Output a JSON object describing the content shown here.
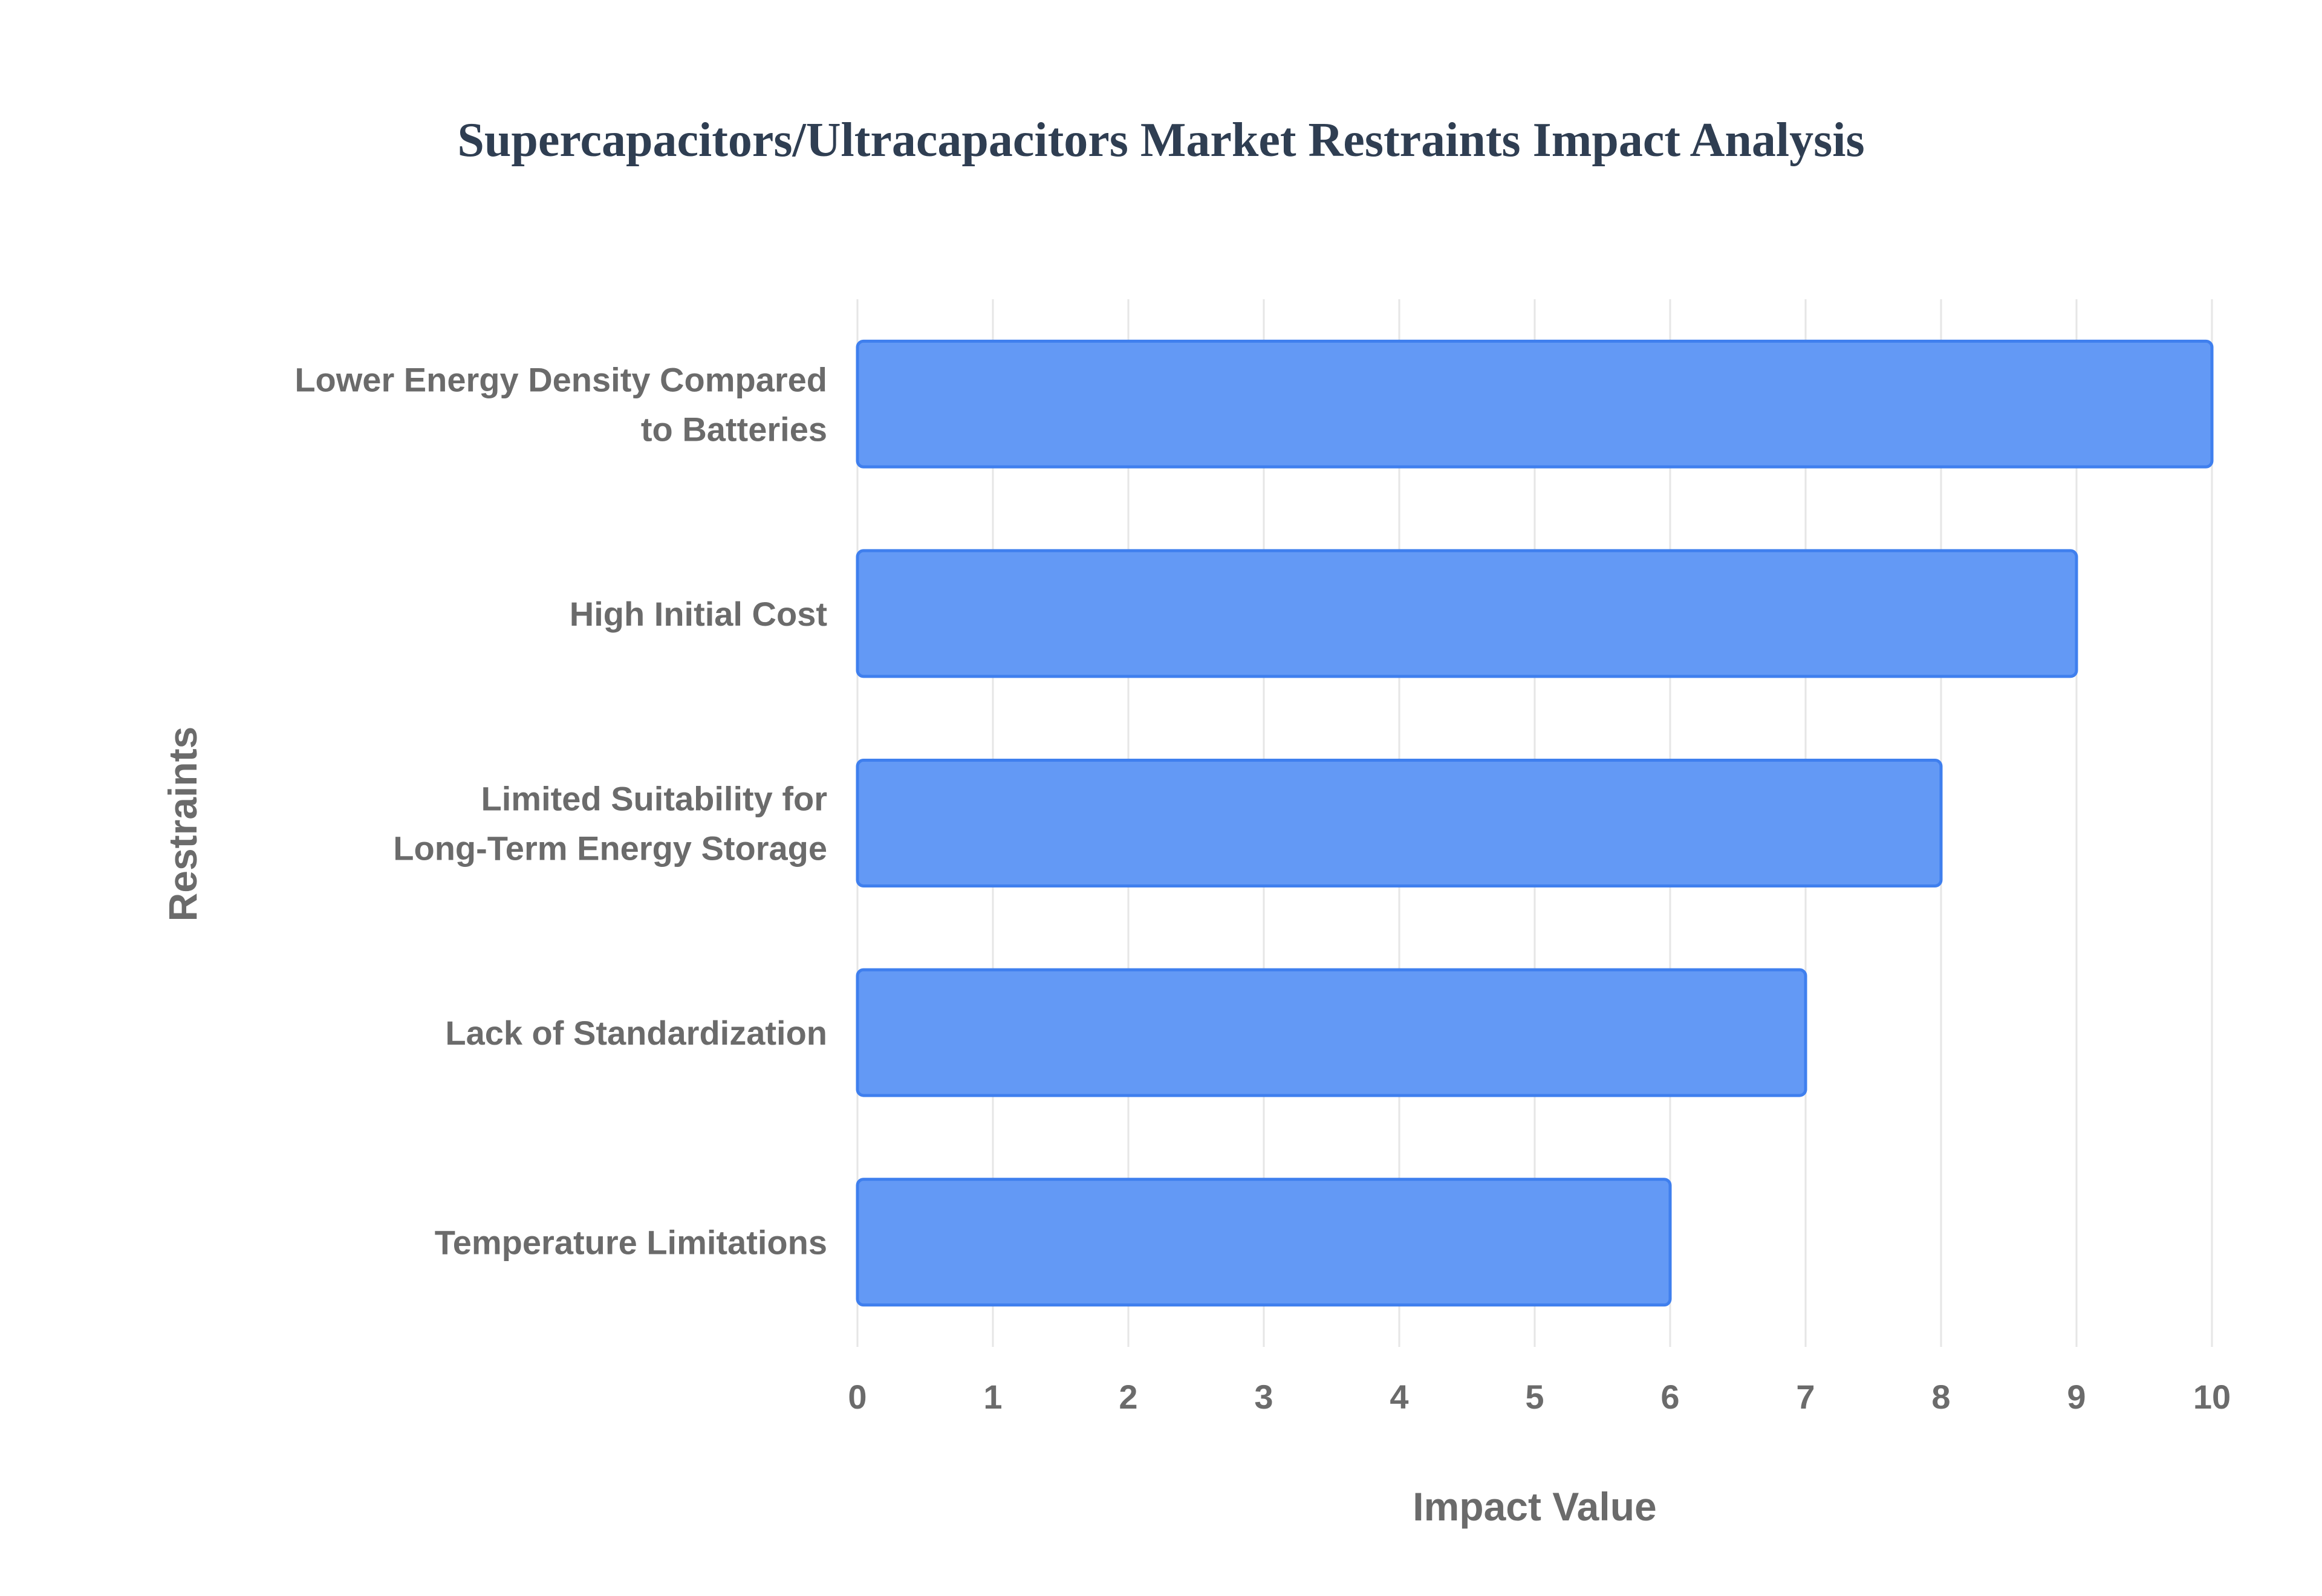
{
  "chart_data": {
    "type": "bar",
    "orientation": "horizontal",
    "title": "Supercapacitors/Ultracapacitors Market Restraints Impact Analysis",
    "xlabel": "Impact Value",
    "ylabel": "Restraints",
    "categories": [
      [
        "Lower Energy Density Compared",
        "to Batteries"
      ],
      [
        "High Initial Cost"
      ],
      [
        "Limited Suitability for",
        "Long-Term Energy Storage"
      ],
      [
        "Lack of Standardization"
      ],
      [
        "Temperature Limitations"
      ]
    ],
    "values": [
      10,
      9,
      8,
      7,
      6
    ],
    "xlim": [
      0,
      10
    ],
    "xticks": [
      "0",
      "1",
      "2",
      "3",
      "4",
      "5",
      "6",
      "7",
      "8",
      "9",
      "10"
    ],
    "grid": true,
    "legend": "none",
    "colors": {
      "bar_fill": "#6399f5",
      "bar_border": "#3f7fee",
      "title": "#2f3e52",
      "labels": "#6b6b6b",
      "grid": "#e6e6e6"
    }
  }
}
